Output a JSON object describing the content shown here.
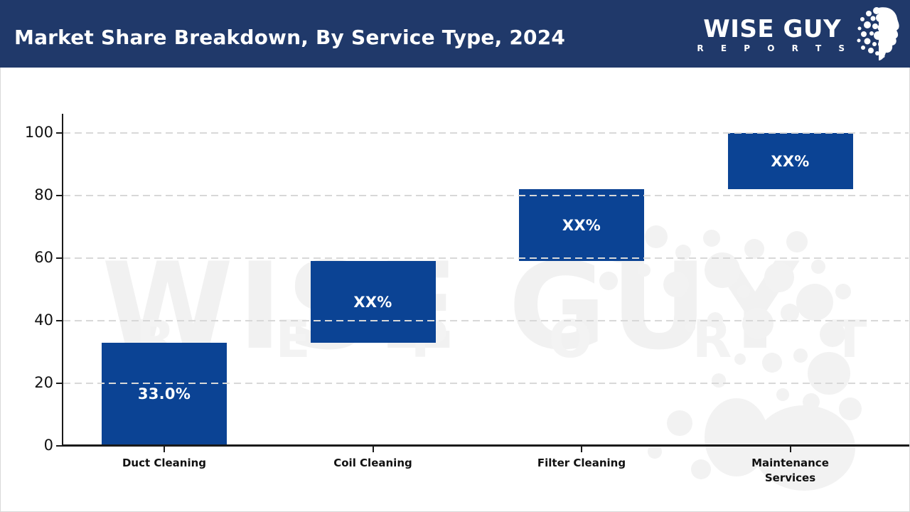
{
  "header": {
    "title": "Market Share Breakdown, By Service Type, 2024",
    "logo": {
      "brand": "WISE GUY",
      "sub": "R E P O R T S"
    }
  },
  "watermark": {
    "brand": "WISE GUY",
    "sub": "R E P O R T S"
  },
  "chart_data": {
    "type": "bar",
    "subtype": "waterfall",
    "title": "Market Share Breakdown, By Service Type, 2024",
    "categories": [
      "Duct Cleaning",
      "Coil Cleaning",
      "Filter Cleaning",
      "Maintenance Services"
    ],
    "segments": [
      {
        "category": "Duct Cleaning",
        "start": 0,
        "end": 33,
        "value_label": "33.0%"
      },
      {
        "category": "Coil Cleaning",
        "start": 33,
        "end": 59,
        "value_label": "XX%"
      },
      {
        "category": "Filter Cleaning",
        "start": 59,
        "end": 82,
        "value_label": "XX%"
      },
      {
        "category": "Maintenance Services",
        "start": 82,
        "end": 100,
        "value_label": "XX%"
      }
    ],
    "xlabel": "",
    "ylabel": "",
    "ylim": [
      0,
      100
    ],
    "yticks": [
      0,
      20,
      40,
      60,
      80,
      100
    ],
    "grid": "horizontal-dashed",
    "legend": "none",
    "colors": {
      "bar": "#0b4394",
      "bar_label": "#ffffff",
      "grid": "#d8d8d8",
      "axis": "#1a1a1a",
      "header_bg": "#20396a",
      "watermark": "#f1f1f1"
    }
  }
}
